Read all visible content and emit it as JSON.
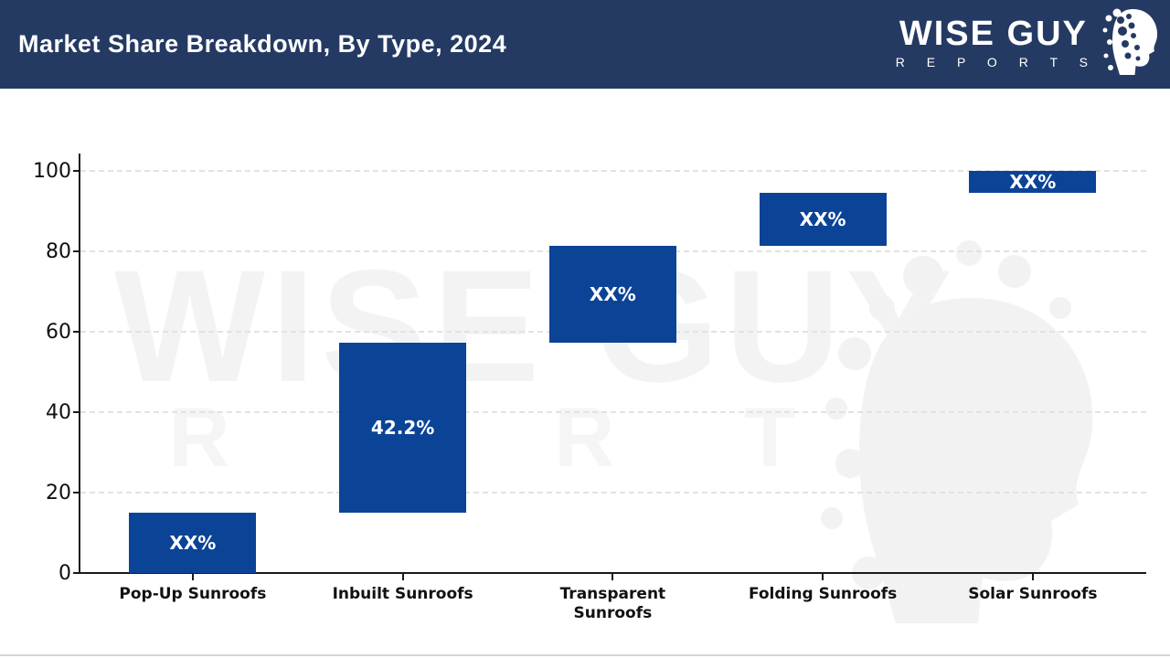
{
  "header": {
    "title": "Market Share Breakdown, By Type, 2024",
    "bg_color": "#243a63",
    "logo": {
      "line1": "WISE GUY",
      "line2": "R E P O R T S"
    }
  },
  "watermark": {
    "line1": "WISE GUY",
    "line2": "R O R T S"
  },
  "chart_data": {
    "type": "bar",
    "subtype": "waterfall",
    "title": "Market Share Breakdown, By Type, 2024",
    "categories": [
      "Pop-Up Sunroofs",
      "Inbuilt Sunroofs",
      "Transparent Sunroofs",
      "Folding Sunroofs",
      "Solar Sunroofs"
    ],
    "segments": [
      {
        "start": 0,
        "end": 15,
        "label": "XX%"
      },
      {
        "start": 15,
        "end": 57.2,
        "label": "42.2%"
      },
      {
        "start": 57.2,
        "end": 81.4,
        "label": "XX%"
      },
      {
        "start": 81.4,
        "end": 94.6,
        "label": "XX%"
      },
      {
        "start": 94.6,
        "end": 100,
        "label": "XX%"
      }
    ],
    "values": [
      15,
      42.2,
      24.2,
      13.2,
      5.4
    ],
    "bar_labels": [
      "XX%",
      "42.2%",
      "XX%",
      "XX%",
      "XX%"
    ],
    "yticks": [
      0,
      20,
      40,
      60,
      80,
      100
    ],
    "ylim": [
      0,
      104.3
    ],
    "grid": "horizontal-dashed",
    "legend": "none",
    "bar_color": "#0b4397",
    "bar_label_color": "#ffffff",
    "axis_color": "#1a1a1a",
    "grid_color": "#e2e2e2"
  }
}
